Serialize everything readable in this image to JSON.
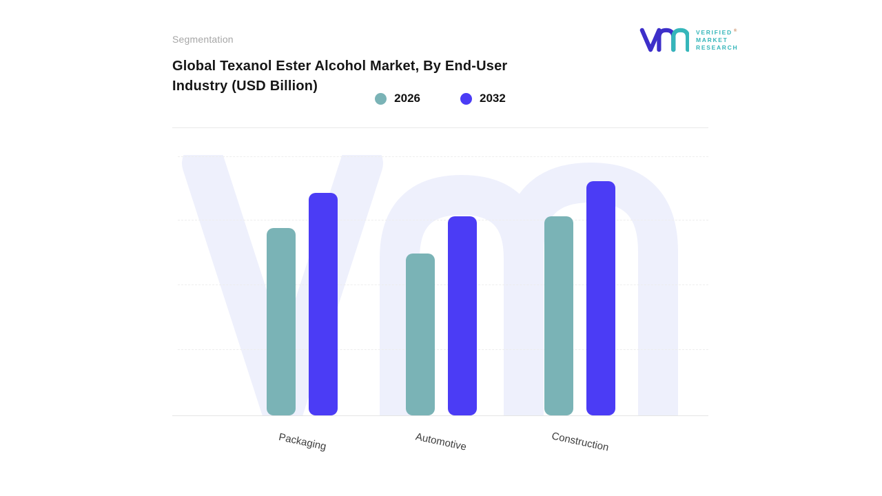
{
  "header": {
    "eyebrow": "Segmentation",
    "title_lines": [
      "Global Texanol Ester Alcohol Market, By End-User",
      "Industry (USD Billion)"
    ]
  },
  "logo": {
    "brand_lines": [
      "VERIFIED",
      "MARKET",
      "RESEARCH"
    ],
    "registered_mark": "®",
    "mark_color_primary": "#3d2fc9",
    "mark_color_accent": "#35b6ba"
  },
  "legend": [
    {
      "label": "2026",
      "color": "#7ab3b6"
    },
    {
      "label": "2032",
      "color": "#4b3cf5"
    }
  ],
  "chart_data": {
    "type": "bar",
    "title": "Global Texanol Ester Alcohol Market, By End-User Industry (USD Billion)",
    "categories": [
      "Packaging",
      "Automotive",
      "Construction"
    ],
    "series": [
      {
        "name": "2026",
        "color": "#7ab3b6",
        "values": [
          80,
          69,
          85
        ]
      },
      {
        "name": "2032",
        "color": "#4b3cf5",
        "values": [
          95,
          85,
          100
        ]
      }
    ],
    "ylim": [
      0,
      100
    ],
    "y_axis_visible": false,
    "grid": "horizontal-dashed",
    "legend_position": "top-center",
    "category_label_rotation_deg": 12
  },
  "watermark_color": "#eef0fc"
}
